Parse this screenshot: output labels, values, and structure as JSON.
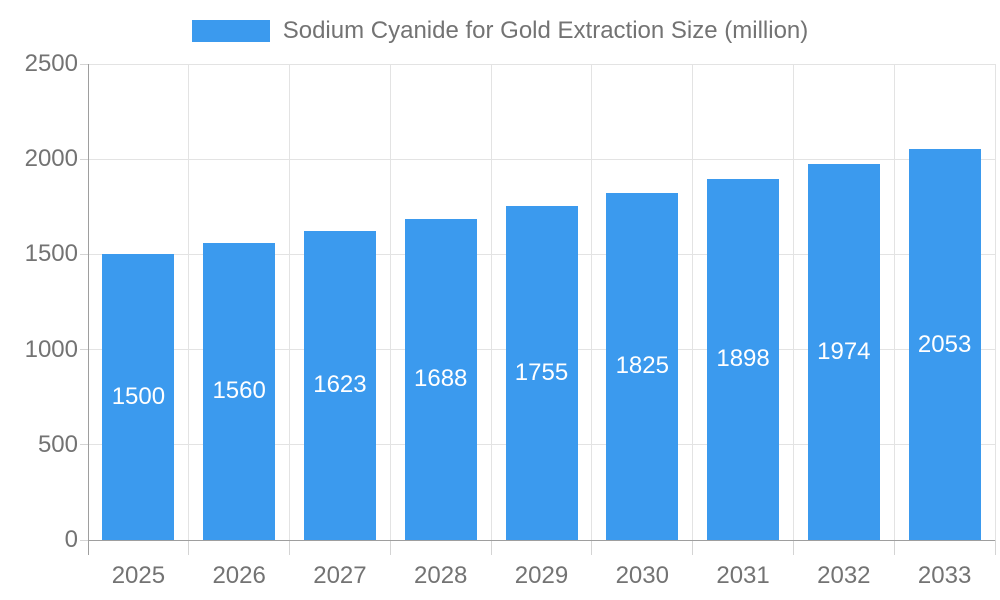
{
  "legend": {
    "label": "Sodium Cyanide for Gold Extraction Size (million)"
  },
  "chart_data": {
    "type": "bar",
    "title": "Sodium Cyanide for Gold Extraction Size (million)",
    "series_name": "Sodium Cyanide for Gold Extraction Size (million)",
    "categories": [
      "2025",
      "2026",
      "2027",
      "2028",
      "2029",
      "2030",
      "2031",
      "2032",
      "2033"
    ],
    "values": [
      1500,
      1560,
      1623,
      1688,
      1755,
      1825,
      1898,
      1974,
      2053
    ],
    "xlabel": "",
    "ylabel": "",
    "ylim": [
      0,
      2500
    ],
    "yticks": [
      0,
      500,
      1000,
      1500,
      2000,
      2500
    ],
    "grid": true,
    "legend_position": "top-center",
    "bar_color": "#3b9aee",
    "value_label_color": "#ffffff",
    "axis_text_color": "#737373",
    "gridline_color": "#e3e3e3",
    "axis_line_color": "#9e9e9e"
  }
}
